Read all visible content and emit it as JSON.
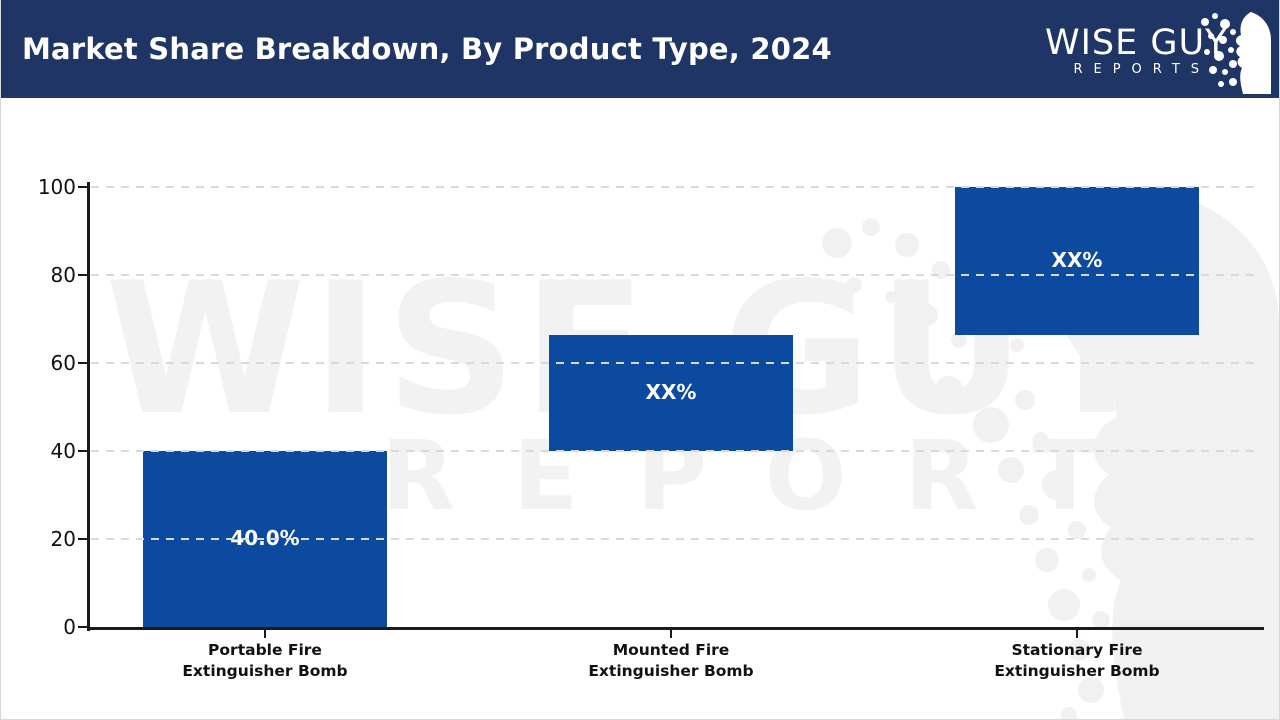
{
  "header": {
    "title": "Market Share Breakdown, By Product Type, 2024",
    "logo": {
      "line1": "WISE GUY",
      "line2": "REPORTS"
    }
  },
  "watermark": {
    "line1": "WISE GUY",
    "line2": "REPORTS"
  },
  "chart_data": {
    "type": "bar",
    "subtype": "waterfall",
    "title": "Market Share Breakdown, By Product Type, 2024",
    "categories": [
      {
        "line1": "Portable Fire",
        "line2": "Extinguisher Bomb"
      },
      {
        "line1": "Mounted Fire",
        "line2": "Extinguisher Bomb"
      },
      {
        "line1": "Stationary Fire",
        "line2": "Extinguisher Bomb"
      }
    ],
    "segments": [
      {
        "label": "40.0%",
        "start": 0,
        "end": 40
      },
      {
        "label": "XX%",
        "start": 40,
        "end": 66.4
      },
      {
        "label": "XX%",
        "start": 66.4,
        "end": 100
      }
    ],
    "y_ticks": [
      0,
      20,
      40,
      60,
      80,
      100
    ],
    "ylim": [
      0,
      102
    ],
    "xlabel": "",
    "ylabel": "",
    "grid": "horizontal-dashed",
    "legend": "none",
    "bar_color": "#0B4A9F",
    "value_label_color": "#FFFFFF",
    "gridline_color": "#D9D9D9",
    "axis_color": "#1A1A1A"
  },
  "colors": {
    "header_bg": "#1F3565",
    "page_border": "#D7D7D7",
    "watermark": "#F2F2F2"
  }
}
